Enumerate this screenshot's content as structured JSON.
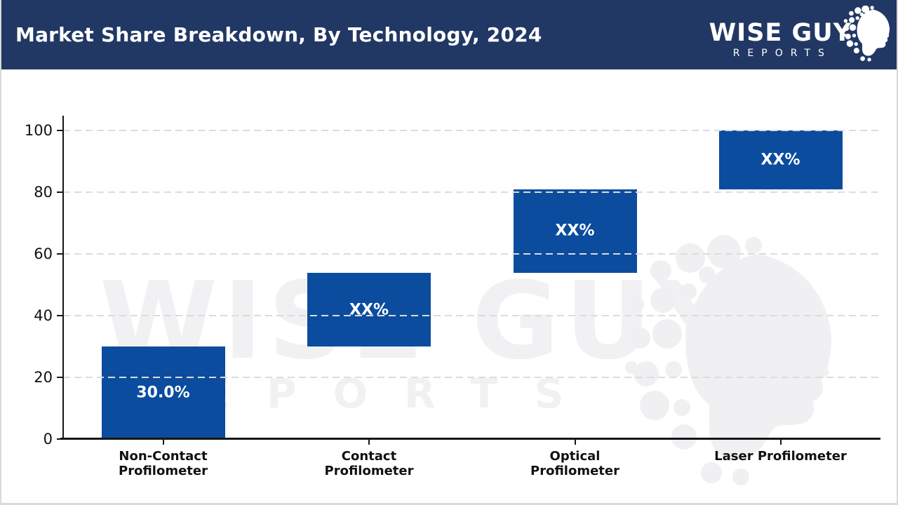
{
  "header": {
    "title": "Market Share Breakdown, By Technology, 2024",
    "logo": {
      "line1": "WISE GUY",
      "line2": "REPORTS"
    }
  },
  "watermark": {
    "line1": "WISE GUY",
    "line2": "REPORTS"
  },
  "colors": {
    "header_bg": "#213865",
    "bar": "#0b4c9e",
    "axis": "#161616",
    "grid": "#dcdcdc",
    "watermark": "#f1f1f3",
    "page_border": "#d9d9d9",
    "bar_label": "#ffffff"
  },
  "chart_data": {
    "type": "bar",
    "subtype": "waterfall",
    "title": "Market Share Breakdown, By Technology, 2024",
    "categories": [
      [
        "Non-Contact",
        "Profilometer"
      ],
      [
        "Contact",
        "Profilometer"
      ],
      [
        "Optical",
        "Profilometer"
      ],
      [
        "Laser Profilometer"
      ]
    ],
    "segments": [
      {
        "start": 0,
        "end": 30
      },
      {
        "start": 30,
        "end": 53.8
      },
      {
        "start": 53.8,
        "end": 81
      },
      {
        "start": 81,
        "end": 100
      }
    ],
    "values": [
      30.0,
      23.8,
      27.2,
      19.0
    ],
    "labels": [
      "30.0%",
      "XX%",
      "XX%",
      "XX%"
    ],
    "xlabel": "",
    "ylabel": "",
    "ylim": [
      0,
      100
    ],
    "yticks": [
      0,
      20,
      40,
      60,
      80,
      100
    ],
    "grid": "horizontal-dashed",
    "legend": "none",
    "bar_color": "#0b4c9e",
    "label_color": "#ffffff"
  }
}
